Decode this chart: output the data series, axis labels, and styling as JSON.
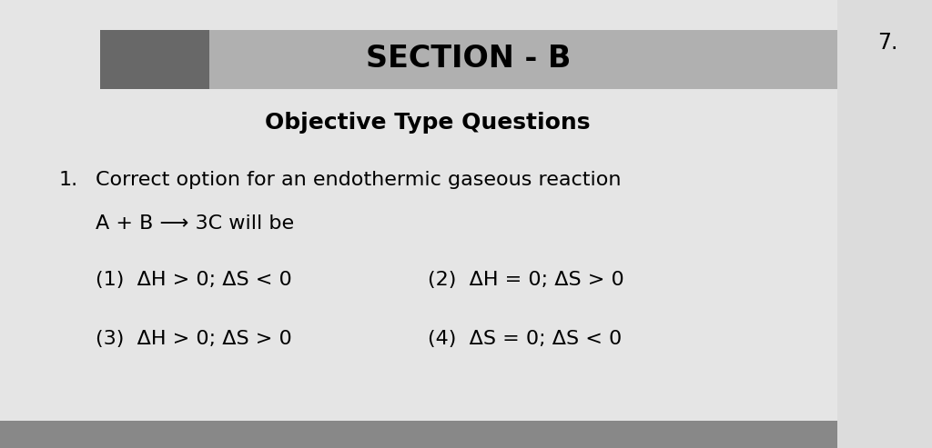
{
  "bg_color": "#e8e8e8",
  "content_bg": "#ebebeb",
  "header_bg": "#b0b0b0",
  "header_text": "SECTION - B",
  "subtitle": "Objective Type Questions",
  "number_label": "7.",
  "question_num": "1.",
  "question_text": "Correct option for an endothermic gaseous reaction",
  "reaction_text": "A + B ⟶ 3C will be",
  "option1": "(1)  ΔH > 0; ΔS < 0",
  "option2": "(2)  ΔH = 0; ΔS > 0",
  "option3": "(3)  ΔH > 0; ΔS > 0",
  "option4": "(4)  ΔS = 0; ΔS < 0",
  "header_fontsize": 24,
  "subtitle_fontsize": 18,
  "question_fontsize": 16,
  "option_fontsize": 16,
  "number_fontsize": 17,
  "reaction_fontsize": 16
}
